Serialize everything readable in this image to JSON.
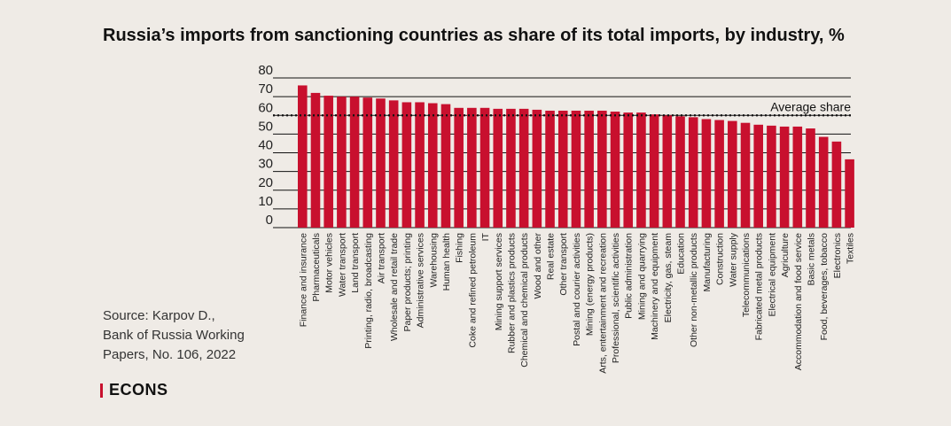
{
  "title": "Russia’s imports from sanctioning countries as share of its total imports, by industry, %",
  "source_lines": [
    "Source: Karpov D.,",
    "Bank of Russia Working",
    "Papers, No. 106, 2022"
  ],
  "logo": "ECONS",
  "colors": {
    "bar": "#c8102e",
    "grid": "#111111",
    "background": "#efebe6"
  },
  "chart_data": {
    "type": "bar",
    "title": "Russia’s imports from sanctioning countries as share of its total imports, by industry, %",
    "xlabel": "",
    "ylabel": "",
    "ylim": [
      0,
      80
    ],
    "yticks": [
      0,
      10,
      20,
      30,
      40,
      50,
      60,
      70,
      80
    ],
    "grid": true,
    "average": {
      "label": "Average share",
      "value": 60
    },
    "categories": [
      "Finance and insurance",
      "Pharmaceuticals",
      "Motor vehicles",
      "Water transport",
      "Land transport",
      "Printing, radio, broadcasting",
      "Air transport",
      "Wholesale and retail trade",
      "Paper products; printing",
      "Administrative services",
      "Warehousing",
      "Human health",
      "Fishing",
      "Coke and refined petroleum",
      "IT",
      "Mining support services",
      "Rubber and plastics products",
      "Chemical and chemical products",
      "Wood and other",
      "Real estate",
      "Other transport",
      "Postal and courier activities",
      "Mining (energy products)",
      "Arts, entertainment and recreation",
      "Professional, scientific activities",
      "Public administration",
      "Mining and quarrying",
      "Machinery and equipment",
      "Electricity, gas, steam",
      "Education",
      "Other non-metallic products",
      "Manufacturing",
      "Construction",
      "Water supply",
      "Telecommunications",
      "Fabricated metal products",
      "Electrical equipment",
      "Agriculture",
      "Accommodation and food service",
      "Basic metals",
      "Food, beverages, tobacco",
      "Electronics",
      "Textiles"
    ],
    "values": [
      76,
      72,
      70.5,
      70,
      70,
      69.5,
      69,
      68,
      67,
      67,
      66.5,
      66,
      64,
      64,
      64,
      63.5,
      63.5,
      63.5,
      63,
      62.5,
      62.5,
      62.5,
      62.5,
      62.5,
      62,
      61.5,
      61.5,
      60.5,
      60,
      59.5,
      59,
      58,
      57.5,
      57,
      56,
      55,
      54.5,
      54,
      54,
      53,
      48.5,
      46,
      36.5
    ]
  }
}
